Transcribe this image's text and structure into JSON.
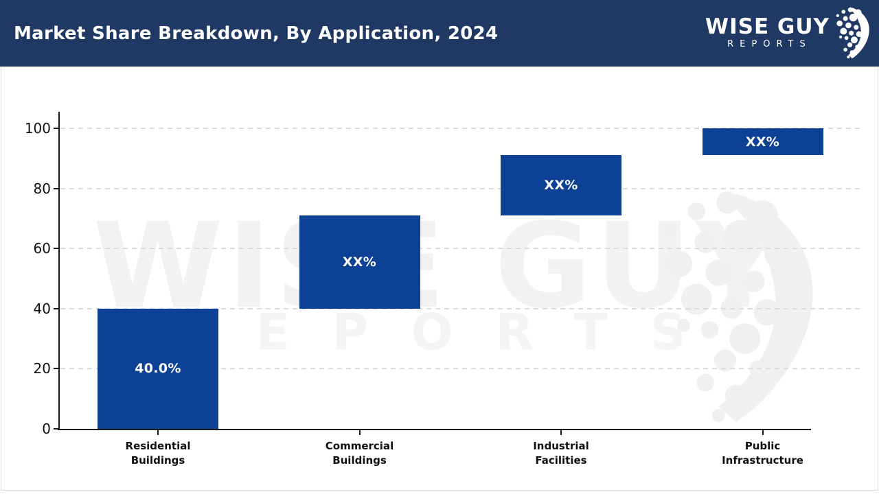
{
  "header": {
    "title": "Market Share Breakdown, By Application, 2024",
    "bg_color": "#1f3864",
    "logo": {
      "line1": "WISE GUY",
      "line2": "REPORTS"
    }
  },
  "watermark": {
    "line1": "WISE GUY",
    "line2": "REPORTS"
  },
  "chart_data": {
    "type": "bar",
    "subtype": "floating-waterfall",
    "title": "Market Share Breakdown, By Application, 2024",
    "categories": [
      "Residential Buildings",
      "Commercial Buildings",
      "Industrial Facilities",
      "Public Infrastructure"
    ],
    "categories_lines": [
      [
        "Residential",
        "Buildings"
      ],
      [
        "Commercial",
        "Buildings"
      ],
      [
        "Industrial",
        "Facilities"
      ],
      [
        "Public",
        "Infrastructure"
      ]
    ],
    "segments": [
      {
        "category": "Residential Buildings",
        "start": 0,
        "end": 40,
        "value": 40,
        "label": "40.0%"
      },
      {
        "category": "Commercial Buildings",
        "start": 40,
        "end": 71,
        "value": 31,
        "label": "XX%"
      },
      {
        "category": "Industrial Facilities",
        "start": 71,
        "end": 91,
        "value": 20,
        "label": "XX%"
      },
      {
        "category": "Public Infrastructure",
        "start": 91,
        "end": 100,
        "value": 9,
        "label": "XX%"
      }
    ],
    "ylim": [
      0,
      100
    ],
    "yticks": [
      0,
      20,
      40,
      60,
      80,
      100
    ],
    "xlabel": "",
    "ylabel": "",
    "grid": "horizontal-dashed",
    "legend": "none",
    "bar_color": "#0c4195",
    "bar_label_color": "#ffffff",
    "axis_color": "#1a1a1a",
    "grid_color": "#dbdbdb"
  }
}
